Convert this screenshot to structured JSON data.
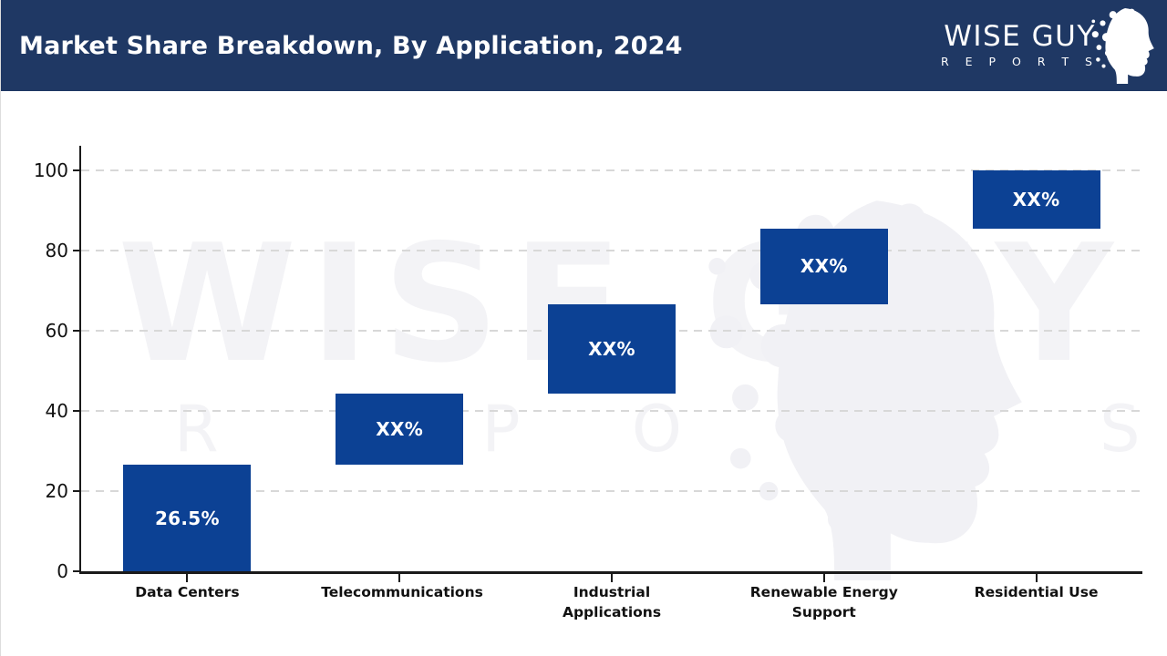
{
  "header": {
    "title": "Market Share Breakdown, By Application, 2024",
    "logo": {
      "line1": "WISE GUY",
      "line2": "R E P O R T S",
      "icon": "dotted-head-profile-icon"
    }
  },
  "watermark": {
    "line1": "WISE GUY",
    "line2": "R E P O R T S",
    "icon": "dotted-head-profile-watermark"
  },
  "colors": {
    "header_bg": "#1f3864",
    "bar": "#0c4194",
    "bar_label": "#ffffff",
    "axis": "#1a1a1a",
    "grid": "#d8d8d8",
    "watermark": "#f2f2f6",
    "page_border": "#dddddd"
  },
  "chart_data": {
    "type": "bar",
    "variant": "waterfall",
    "title": "Market Share Breakdown, By Application, 2024",
    "xlabel": "",
    "ylabel": "",
    "ylim": [
      0,
      100
    ],
    "yticks": [
      0,
      20,
      40,
      60,
      80,
      100
    ],
    "grid": "horizontal-dashed",
    "legend": "none",
    "categories": [
      "Data Centers",
      "Telecommunications",
      "Industrial Applications",
      "Renewable Energy Support",
      "Residential Use"
    ],
    "segments": [
      {
        "category": "Data Centers",
        "start": 0,
        "end": 26.5,
        "label": "26.5%"
      },
      {
        "category": "Telecommunications",
        "start": 26.5,
        "end": 44.4,
        "label": "XX%"
      },
      {
        "category": "Industrial Applications",
        "start": 44.4,
        "end": 66.6,
        "label": "XX%"
      },
      {
        "category": "Renewable Energy Support",
        "start": 66.6,
        "end": 85.5,
        "label": "XX%"
      },
      {
        "category": "Residential Use",
        "start": 85.5,
        "end": 100,
        "label": "XX%"
      }
    ],
    "bar_color": "#0c4194"
  }
}
